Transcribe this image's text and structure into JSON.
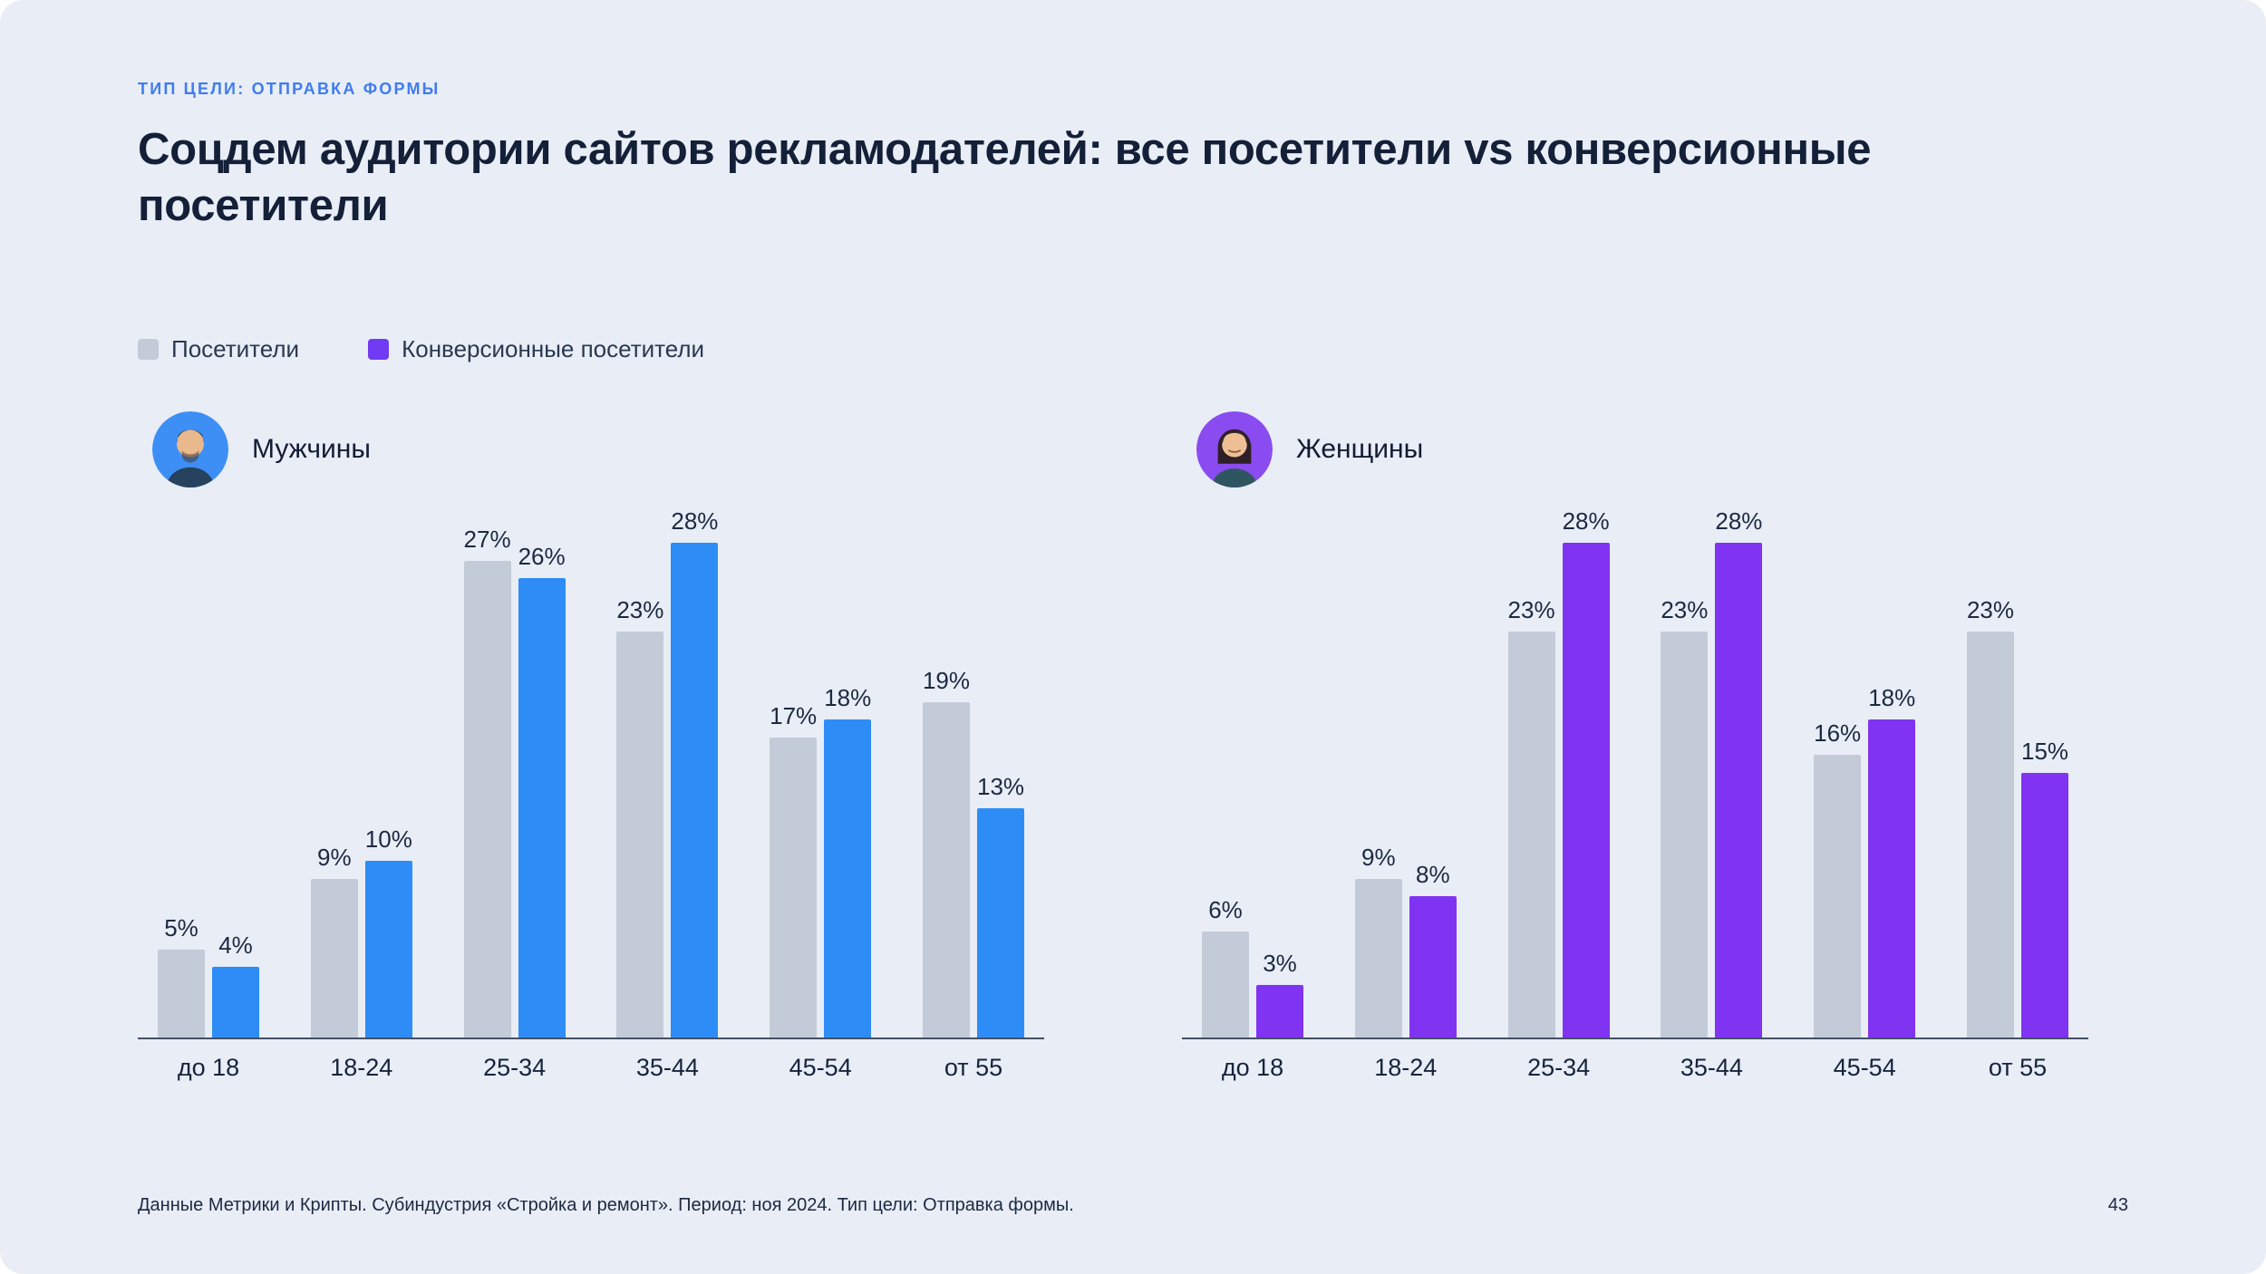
{
  "slide": {
    "eyebrow": "ТИП ЦЕЛИ: ОТПРАВКА ФОРМЫ",
    "title": "Соцдем аудитории сайтов рекламодателей: все посетители vs конверсионные посетители",
    "footer_note": "Данные Метрики и Крипты. Субиндустрия «Стройка и ремонт». Период: ноя 2024. Тип цели: Отправка формы.",
    "page_number": "43"
  },
  "legend": {
    "visitors_label": "Посетители",
    "conversion_label": "Конверсионные посетители"
  },
  "colors": {
    "background": "#e8edf6",
    "accent_eyebrow": "#3f7cf0",
    "visitors_bar": "#c3cbd9",
    "men_conversion_bar": "#2e8cf6",
    "women_conversion_bar": "#8133f2",
    "legend_conversion": "#713bf3"
  },
  "chart_data": [
    {
      "type": "bar",
      "title": "Мужчины",
      "unit": "%",
      "categories": [
        "до 18",
        "18-24",
        "25-34",
        "35-44",
        "45-54",
        "от 55"
      ],
      "series": [
        {
          "name": "Посетители",
          "values": [
            5,
            9,
            27,
            23,
            17,
            19
          ]
        },
        {
          "name": "Конверсионные посетители",
          "values": [
            4,
            10,
            26,
            28,
            18,
            13
          ]
        }
      ],
      "ylim": [
        0,
        28
      ],
      "grid": false,
      "legend_position": "top-left"
    },
    {
      "type": "bar",
      "title": "Женщины",
      "unit": "%",
      "categories": [
        "до 18",
        "18-24",
        "25-34",
        "35-44",
        "45-54",
        "от 55"
      ],
      "series": [
        {
          "name": "Посетители",
          "values": [
            6,
            9,
            23,
            23,
            16,
            23
          ]
        },
        {
          "name": "Конверсионные посетители",
          "values": [
            3,
            8,
            28,
            28,
            18,
            15
          ]
        }
      ],
      "ylim": [
        0,
        28
      ],
      "grid": false,
      "legend_position": "top-left"
    }
  ]
}
